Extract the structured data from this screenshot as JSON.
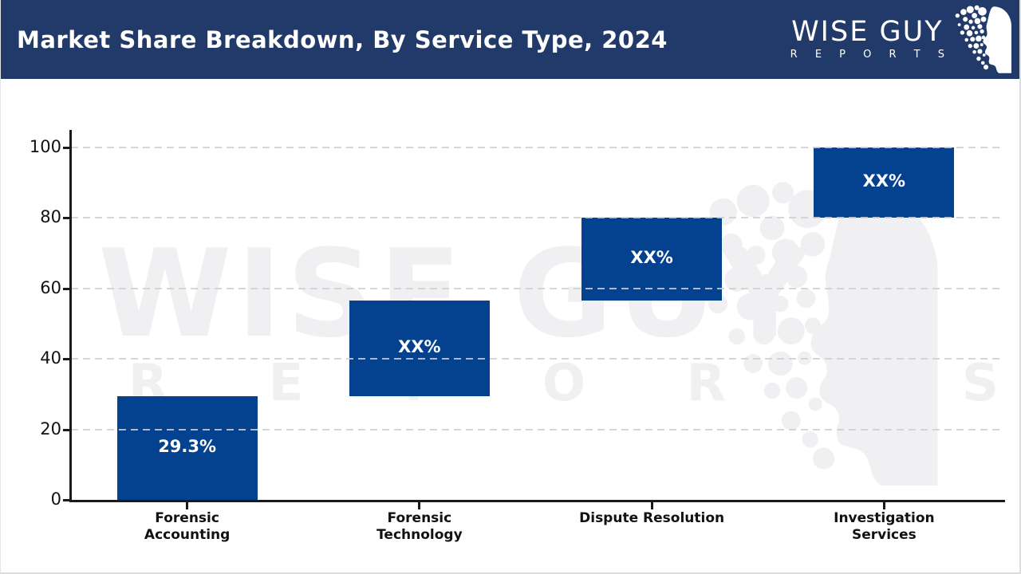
{
  "header": {
    "title": "Market Share Breakdown, By Service Type, 2024",
    "background": "#213a69",
    "logo": {
      "primary": "WISE GUY",
      "secondary": "R E P O R T S"
    }
  },
  "watermark": {
    "line1": "WISE GUY",
    "line2": "R E P O R T S"
  },
  "chart_data": {
    "type": "bar",
    "subtype": "waterfall",
    "title": "Market Share Breakdown, By Service Type, 2024",
    "categories": [
      "Forensic\nAccounting",
      "Forensic\nTechnology",
      "Dispute Resolution",
      "Investigation\nServices"
    ],
    "series": [
      {
        "name": "Market Share",
        "segments": [
          {
            "category": "Forensic Accounting",
            "start": 0,
            "end": 29.3,
            "label": "29.3%"
          },
          {
            "category": "Forensic Technology",
            "start": 29.3,
            "end": 56.5,
            "label": "XX%"
          },
          {
            "category": "Dispute Resolution",
            "start": 56.5,
            "end": 80.2,
            "label": "XX%"
          },
          {
            "category": "Investigation Services",
            "start": 80.2,
            "end": 100,
            "label": "XX%"
          }
        ]
      }
    ],
    "xlabel": "",
    "ylabel": "",
    "ylim": [
      0,
      105
    ],
    "yticks": [
      0,
      20,
      40,
      60,
      80,
      100
    ],
    "grid": "horizontal-dashed",
    "legend": "none",
    "bar_color": "#04428f",
    "bar_label_color": "#ffffff",
    "axis_color": "#1a1a1a",
    "gridline_color": "#cfcfcf"
  }
}
